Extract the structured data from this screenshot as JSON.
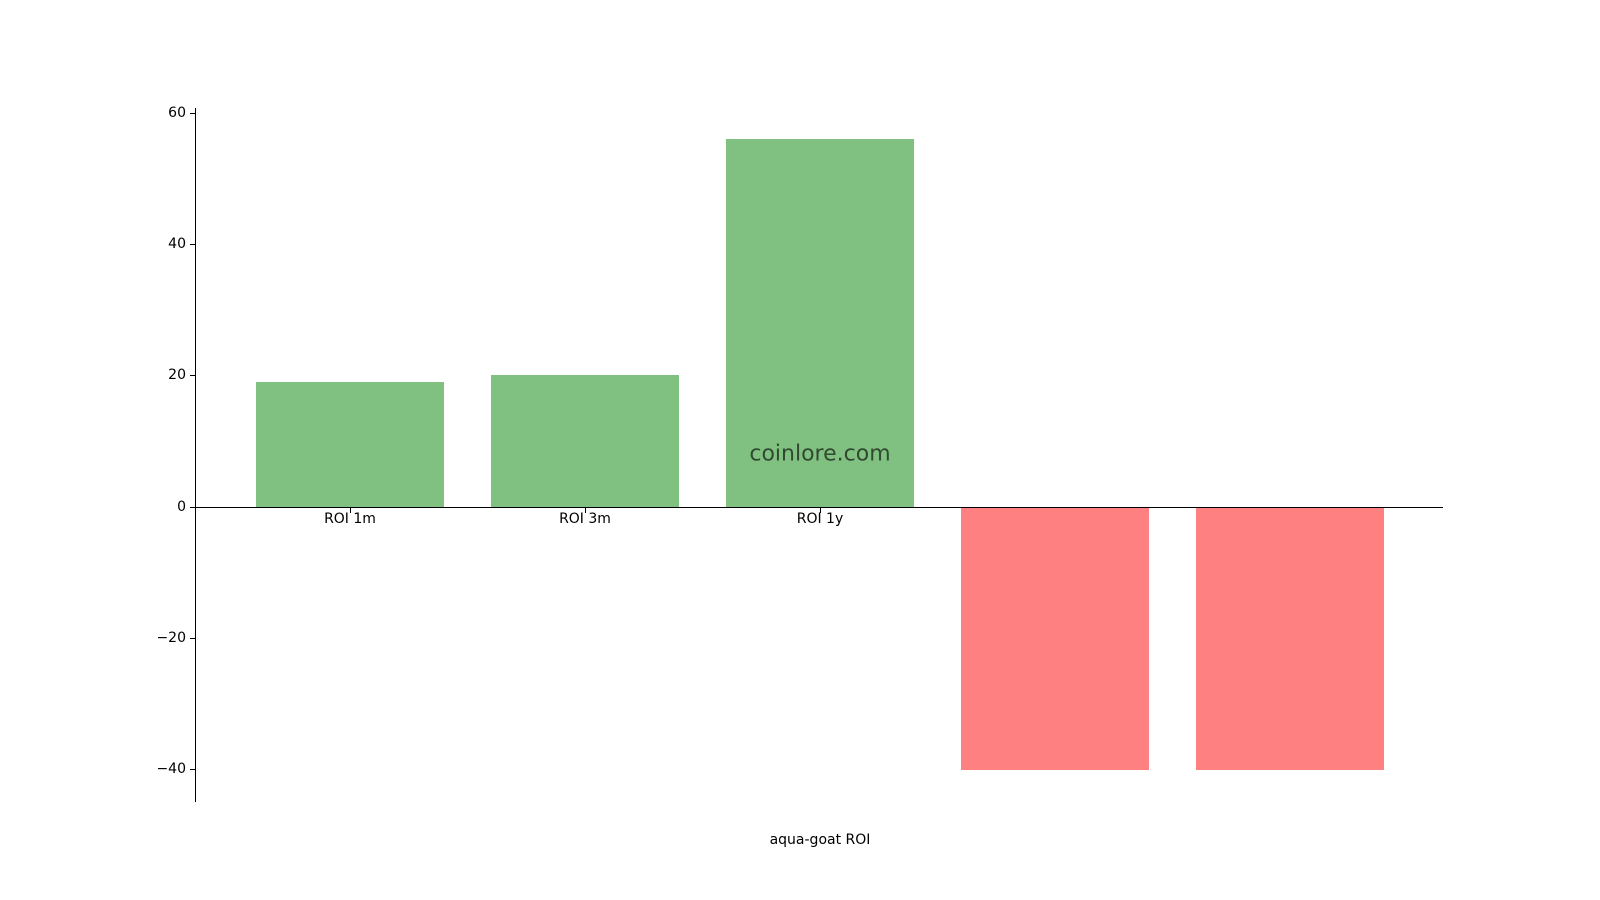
{
  "watermark": "coinlore.com",
  "chart_data": {
    "type": "bar",
    "title": "",
    "xlabel": "aqua-goat ROI",
    "ylabel": "",
    "categories": [
      "ROI 1m",
      "ROI 3m",
      "ROI 1y",
      "",
      ""
    ],
    "values": [
      19,
      20,
      56,
      -40,
      -40
    ],
    "bar_colors": [
      "#80c080",
      "#80c080",
      "#80c080",
      "#ff8080",
      "#ff8080"
    ],
    "positive_color": "#80c080",
    "negative_color": "#ff8080",
    "bar_width_units": 0.8,
    "ylim": [
      -45.0,
      60.7
    ],
    "xlim": [
      -0.655,
      4.65
    ],
    "ytick_values": [
      60,
      40,
      20,
      0,
      -20,
      -40
    ],
    "ytick_labels": [
      "60",
      "40",
      "20",
      "0",
      "−20",
      "−40"
    ],
    "grid": false,
    "legend": null,
    "axis_color": "#000000",
    "background_color": "#ffffff"
  }
}
